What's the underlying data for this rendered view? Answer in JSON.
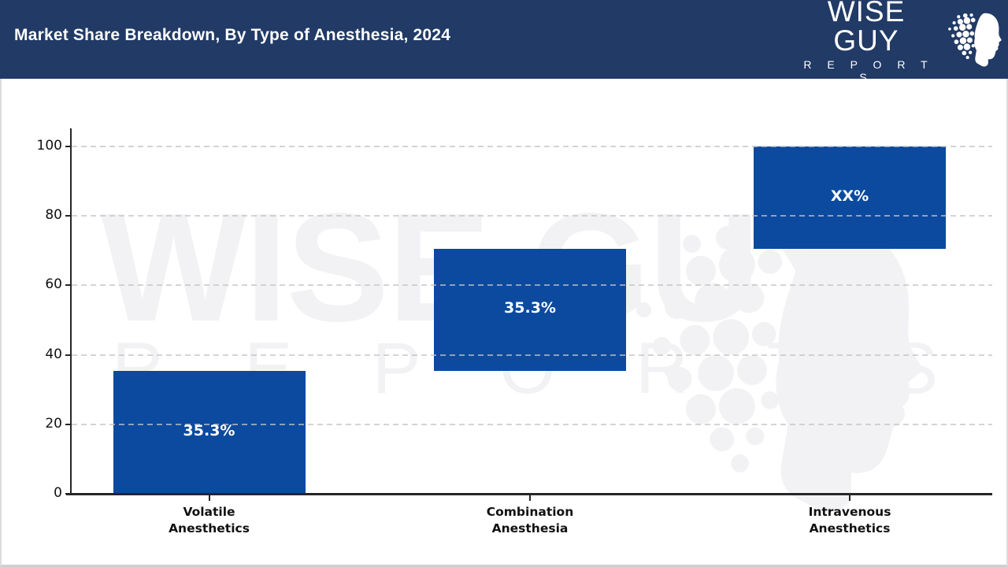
{
  "header": {
    "title": "Market Share Breakdown, By Type of Anesthesia, 2024",
    "logo": {
      "name": "WISE GUY",
      "sub": "R E P O R T S"
    }
  },
  "watermark": {
    "big": "WISE GUY",
    "sub": "R E P O R T S"
  },
  "chart_data": {
    "type": "bar",
    "variant": "stacked-waterfall",
    "title": "Market Share Breakdown, By Type of Anesthesia, 2024",
    "categories": [
      {
        "line1": "Volatile",
        "line2": "Anesthetics"
      },
      {
        "line1": "Combination",
        "line2": "Anesthesia"
      },
      {
        "line1": "Intravenous",
        "line2": "Anesthetics"
      }
    ],
    "bars": [
      {
        "start": 0,
        "end": 35.3,
        "label": "35.3%"
      },
      {
        "start": 35.3,
        "end": 70.6,
        "label": "35.3%"
      },
      {
        "start": 70.6,
        "end": 100,
        "label": "XX%"
      }
    ],
    "yticks": [
      0,
      20,
      40,
      60,
      80,
      100
    ],
    "ylim": [
      0,
      105.2
    ],
    "xlabel": "",
    "ylabel": "",
    "grid": {
      "horizontal": true,
      "style": "dashed"
    },
    "legend": "none",
    "bar_color": "#0b4a9e",
    "bar_label_color": "#ffffff",
    "axis_color": "#262626",
    "grid_color": "#d8d8d8"
  },
  "colors": {
    "header_bg": "#213a66",
    "watermark": "#f2f2f4"
  }
}
